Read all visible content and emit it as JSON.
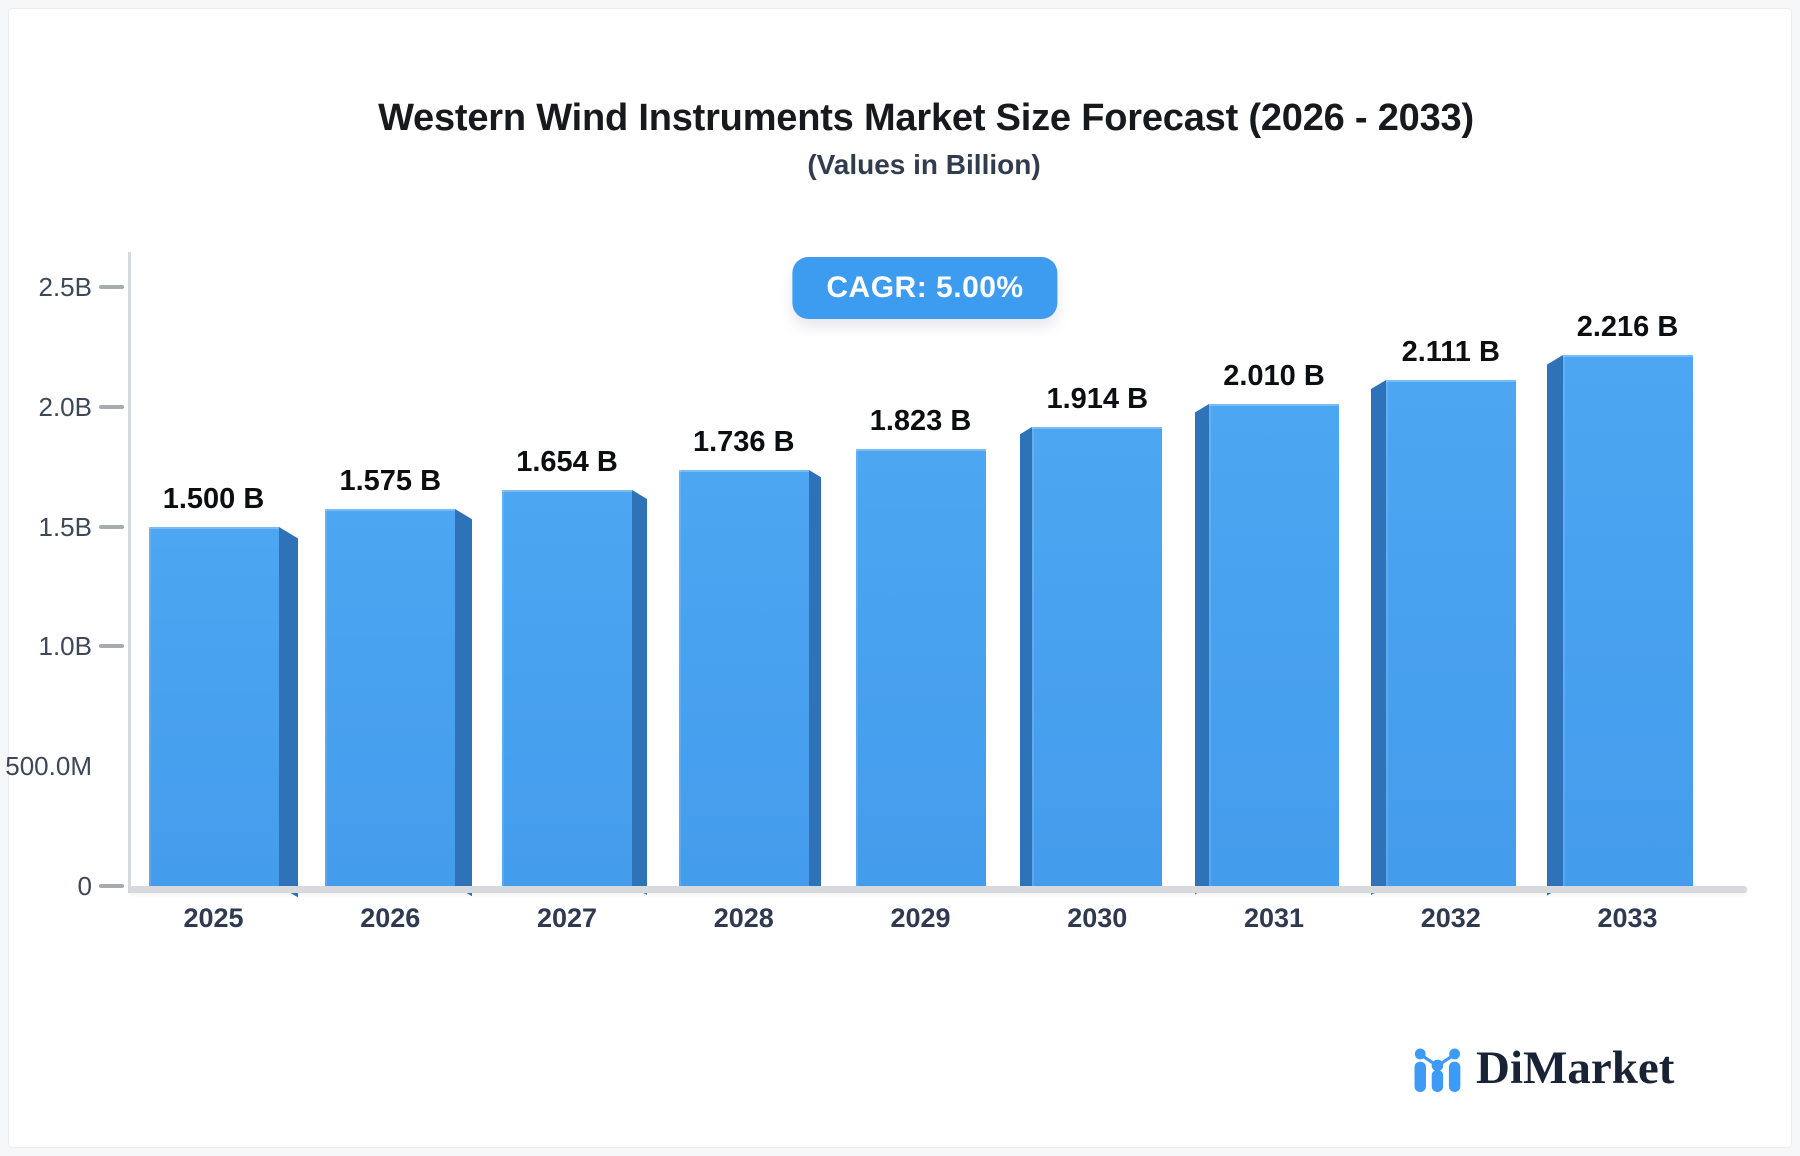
{
  "header": {
    "title": "Western Wind Instruments Market Size Forecast (2026 - 2033)",
    "subtitle": "(Values in Billion)",
    "cagr_label": "CAGR: 5.00%"
  },
  "chart_data": {
    "type": "bar",
    "title": "Western Wind Instruments Market Size Forecast (2026 - 2033)",
    "subtitle": "(Values in Billion)",
    "cagr": "5.00%",
    "categories": [
      "2025",
      "2026",
      "2027",
      "2028",
      "2029",
      "2030",
      "2031",
      "2032",
      "2033"
    ],
    "values": [
      1.5,
      1.575,
      1.654,
      1.736,
      1.823,
      1.914,
      2.01,
      2.111,
      2.216
    ],
    "data_labels": [
      "1.500 B",
      "1.575 B",
      "1.654 B",
      "1.736 B",
      "1.823 B",
      "1.914 B",
      "2.010 B",
      "2.111 B",
      "2.216 B"
    ],
    "unit": "Billion",
    "xlabel": "",
    "ylabel": "",
    "ylim": [
      0,
      2.5
    ],
    "yticks": [
      {
        "label": "2.5B",
        "value": 2.5,
        "dash": true
      },
      {
        "label": "2.0B",
        "value": 2.0,
        "dash": true
      },
      {
        "label": "1.5B",
        "value": 1.5,
        "dash": true
      },
      {
        "label": "1.0B",
        "value": 1.0,
        "dash": true
      },
      {
        "label": "500.0M",
        "value": 0.5,
        "dash": false
      },
      {
        "label": "0",
        "value": 0.0,
        "dash": true
      }
    ],
    "grid": false,
    "legend": false,
    "bar_color": "#46A0F0",
    "bar_side_color": "#2E73B7",
    "side_widths": [
      19,
      17,
      15,
      12,
      0,
      -12,
      -14,
      -15,
      -16
    ]
  },
  "footer": {
    "logo_text": "DiMarket"
  },
  "colors": {
    "accent_blue": "#3D9BF0",
    "logo_blue": "#3E9AF5",
    "logo_text": "#1a2335",
    "axis_line": "#d8d9dd",
    "tick_dash": "#a6aab1",
    "title_text": "#17191d",
    "subtitle_text": "#323c4f",
    "y_label_text": "#3d4758",
    "x_label_text": "#2f3a51",
    "value_label_text": "#0c0e11"
  }
}
